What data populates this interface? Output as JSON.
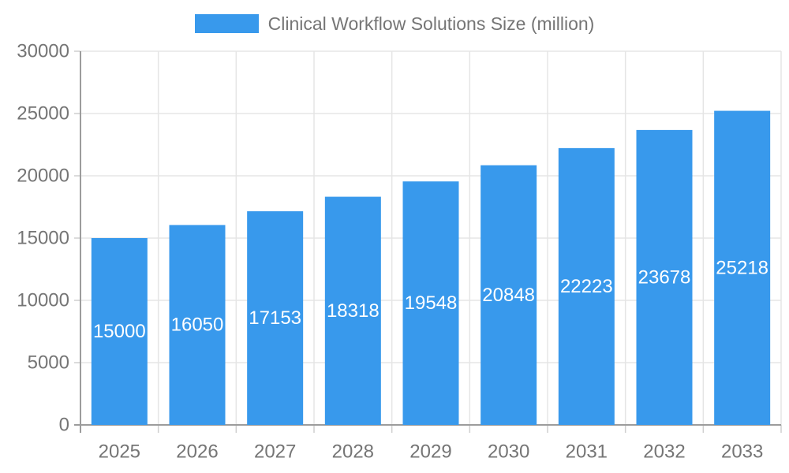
{
  "legend": {
    "label": "Clinical Workflow Solutions Size (million)"
  },
  "chart_data": {
    "type": "bar",
    "title": "Clinical Workflow Solutions Size (million)",
    "categories": [
      "2025",
      "2026",
      "2027",
      "2028",
      "2029",
      "2030",
      "2031",
      "2032",
      "2033"
    ],
    "values": [
      15000,
      16050,
      17153,
      18318,
      19548,
      20848,
      22223,
      23678,
      25218
    ],
    "series": [
      {
        "name": "Clinical Workflow Solutions Size (million)",
        "values": [
          15000,
          16050,
          17153,
          18318,
          19548,
          20848,
          22223,
          23678,
          25218
        ]
      }
    ],
    "xlabel": "",
    "ylabel": "",
    "ylim": [
      0,
      30000
    ],
    "yticks": [
      0,
      5000,
      10000,
      15000,
      20000,
      25000,
      30000
    ],
    "grid": true,
    "legend_position": "top",
    "value_labels": "inside-center-white",
    "colors": {
      "bar": "#3899EC",
      "grid": "#E5E5E5",
      "axis": "#9C9C9C",
      "tick": "#CFCFCF",
      "tick_label": "#757575",
      "value_label": "#FFFFFF",
      "background": "#FFFFFF"
    }
  }
}
